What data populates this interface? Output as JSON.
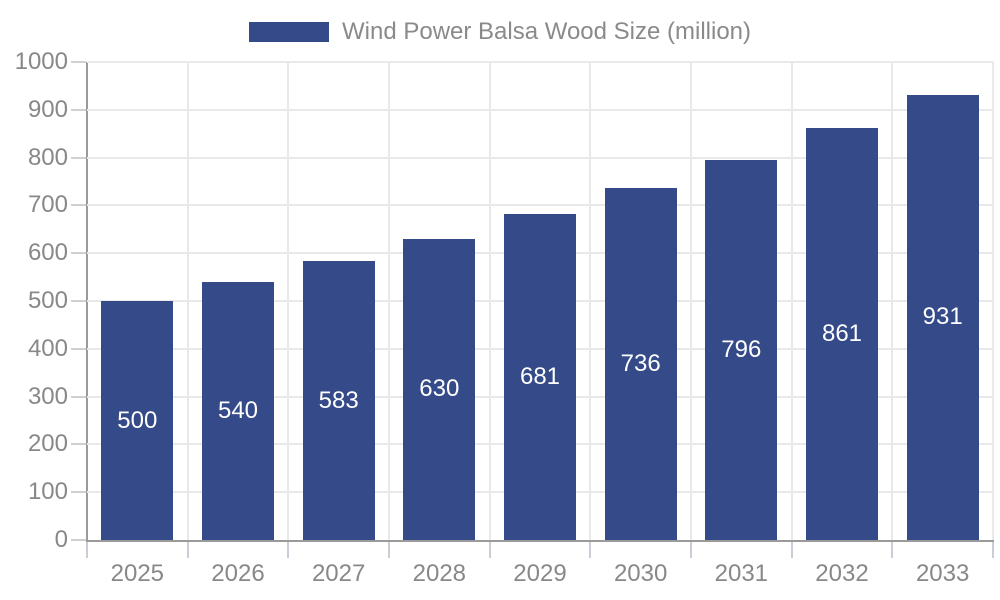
{
  "chart_data": {
    "type": "bar",
    "title": "Wind Power Balsa Wood Size (million)",
    "categories": [
      "2025",
      "2026",
      "2027",
      "2028",
      "2029",
      "2030",
      "2031",
      "2032",
      "2033"
    ],
    "values": [
      500,
      540,
      583,
      630,
      681,
      736,
      796,
      861,
      931
    ],
    "xlabel": "",
    "ylabel": "",
    "ylim": [
      0,
      1000
    ],
    "ytick_step": 100,
    "grid": true,
    "legend_position": "top-center",
    "value_labels": "inside-center",
    "colors": {
      "bar": "#354a88",
      "value_label": "#ffffff",
      "legend_text": "#8a8a8a",
      "axis_text": "#888888",
      "axis_line": "#9a9a9a",
      "gridline": "#e9e9e9",
      "y_tick": "#d0d0d0",
      "x_tick": "#c9cdd6"
    }
  }
}
